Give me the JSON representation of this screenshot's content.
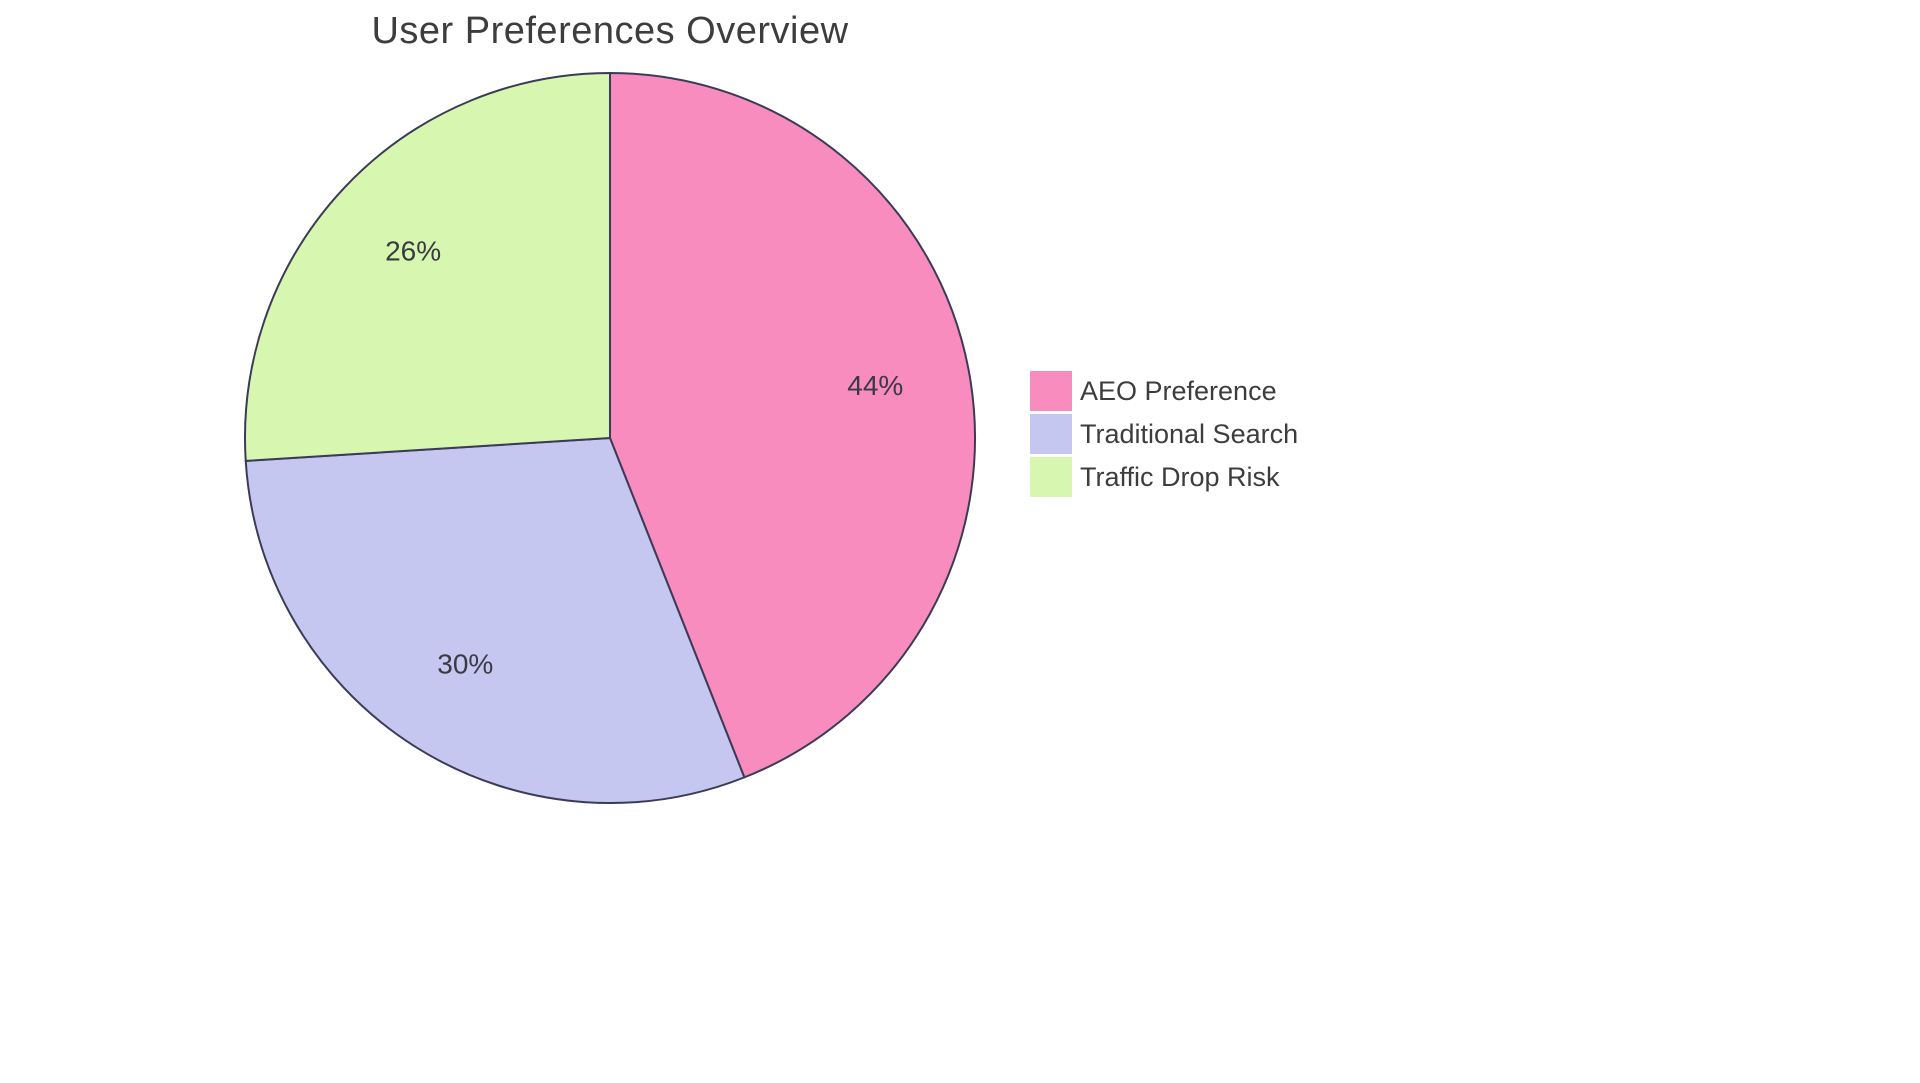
{
  "chart_data": {
    "type": "pie",
    "title": "User Preferences Overview",
    "labels": [
      "AEO Preference",
      "Traditional Search",
      "Traffic Drop Risk"
    ],
    "values": [
      44,
      30,
      26
    ],
    "percent_labels": [
      "44%",
      "30%",
      "26%"
    ],
    "colors": [
      "#F98CBE",
      "#C6C7F0",
      "#D7F7B0"
    ],
    "outline_color": "#3B3B58",
    "label_color": "#3A3A46",
    "background_color": "#FFFFFF",
    "legend_position": "right",
    "start_angle_deg": -90,
    "direction": "clockwise"
  }
}
